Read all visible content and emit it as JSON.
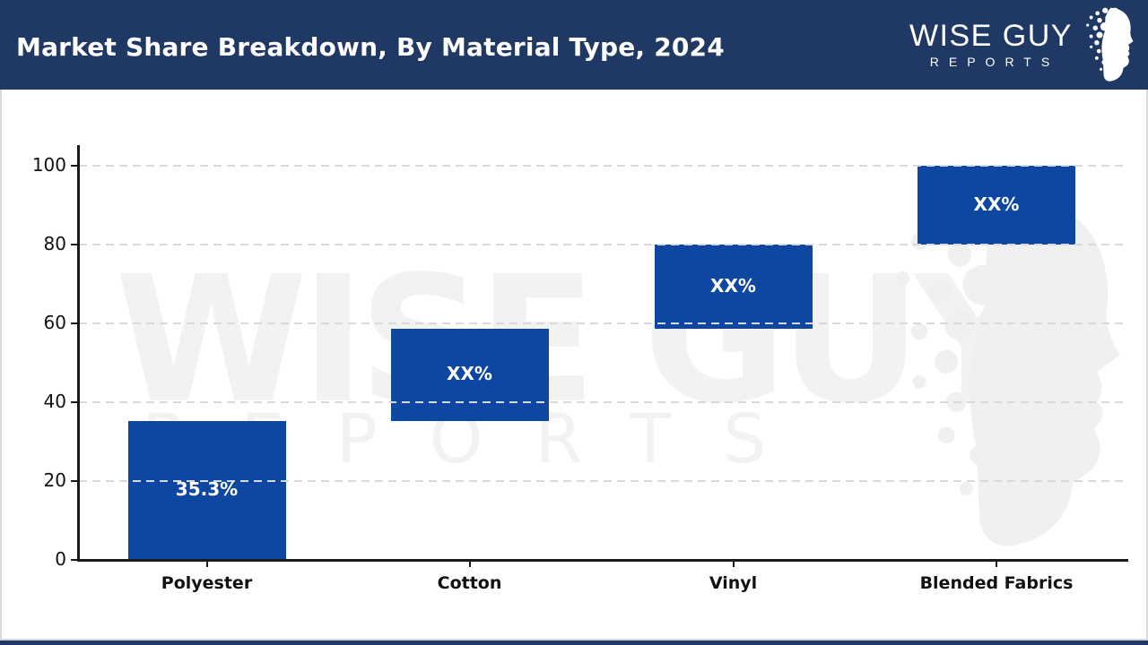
{
  "header": {
    "title": "Market Share Breakdown, By Material Type, 2024",
    "bg_color": "#1f3864",
    "logo": {
      "name": "WISE GUY",
      "sub": "REPORTS"
    }
  },
  "watermark": {
    "line1": "WISE GUY",
    "line2": "REPORTS"
  },
  "colors": {
    "header_navy": "#1f3864",
    "bar_blue": "#0d47a1",
    "gridline_gray": "#d9d9d9",
    "watermark_gray": "#f2f2f2",
    "axis_black": "#1a1a1a"
  },
  "chart_data": {
    "type": "bar",
    "subtype": "waterfall",
    "title": "Market Share Breakdown, By Material Type, 2024",
    "categories": [
      "Polyester",
      "Cotton",
      "Vinyl",
      "Blended Fabrics"
    ],
    "segments": [
      {
        "category": "Polyester",
        "start": 0,
        "end": 35.3,
        "label": "35.3%"
      },
      {
        "category": "Cotton",
        "start": 35.3,
        "end": 58.6,
        "label": "XX%"
      },
      {
        "category": "Vinyl",
        "start": 58.6,
        "end": 80,
        "label": "XX%"
      },
      {
        "category": "Blended Fabrics",
        "start": 80,
        "end": 100,
        "label": "XX%"
      }
    ],
    "xlabel": "",
    "ylabel": "",
    "ylim": [
      0,
      105
    ],
    "yticks": [
      0,
      20,
      40,
      60,
      80,
      100
    ],
    "grid": "dashed-horizontal",
    "legend": "none",
    "bar_color": "#0d47a1",
    "bar_label_color": "#ffffff"
  }
}
